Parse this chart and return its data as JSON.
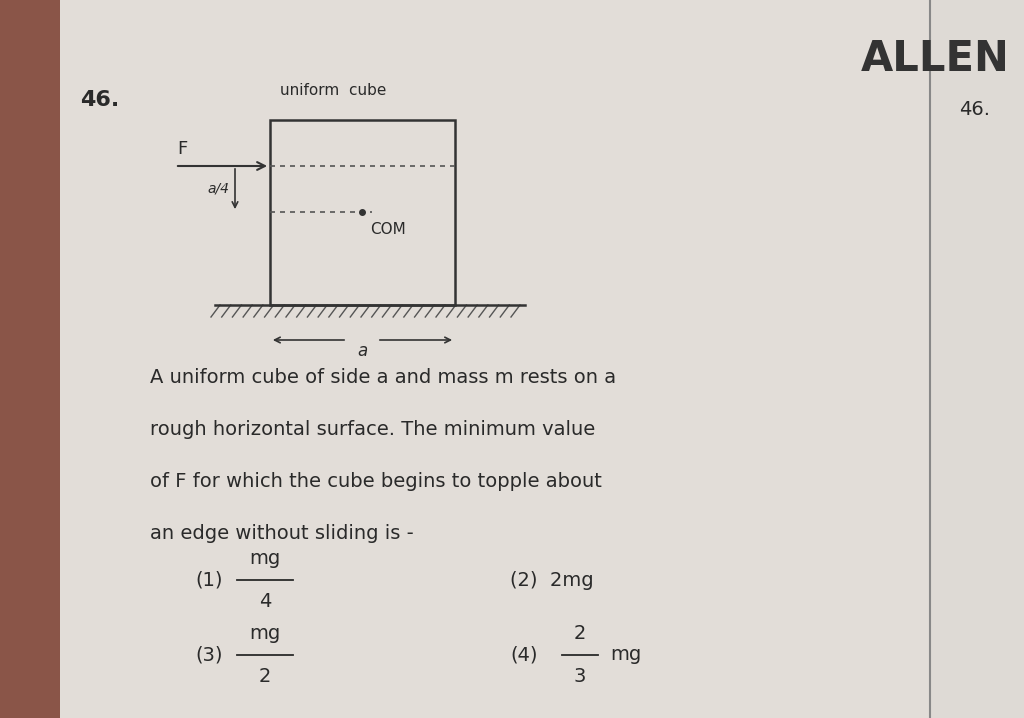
{
  "bg_color": "#d0c8c0",
  "page_color": "#e8e5e0",
  "white_area_color": "#dedad5",
  "allen_text": "ALLEN",
  "prob_num_left": "46.",
  "prob_num_right": "46.",
  "diagram_label": "uniform  cube",
  "force_label": "F",
  "a4_label": "a/4",
  "com_label": "COM",
  "a_label": "a",
  "body_line1": "A uniform cube of side a and mass m rests on a",
  "body_line2": "rough horizontal surface. The minimum value",
  "body_line3": "of F for which the cube begins to topple about",
  "body_line4": "an edge without sliding is -",
  "opt1_pre": "(1)",
  "opt1_num": "mg",
  "opt1_den": "4",
  "opt2_text": "(2)  2mg",
  "opt3_pre": "(3)",
  "opt3_num": "mg",
  "opt3_den": "2",
  "opt4_pre": "(4)",
  "opt4_num": "2",
  "opt4_den": "3",
  "opt4_unit": "mg",
  "text_color": "#2a2a2a",
  "line_color": "#333333",
  "dashed_color": "#555555",
  "allen_color": "#333333",
  "separator_color": "#888888"
}
